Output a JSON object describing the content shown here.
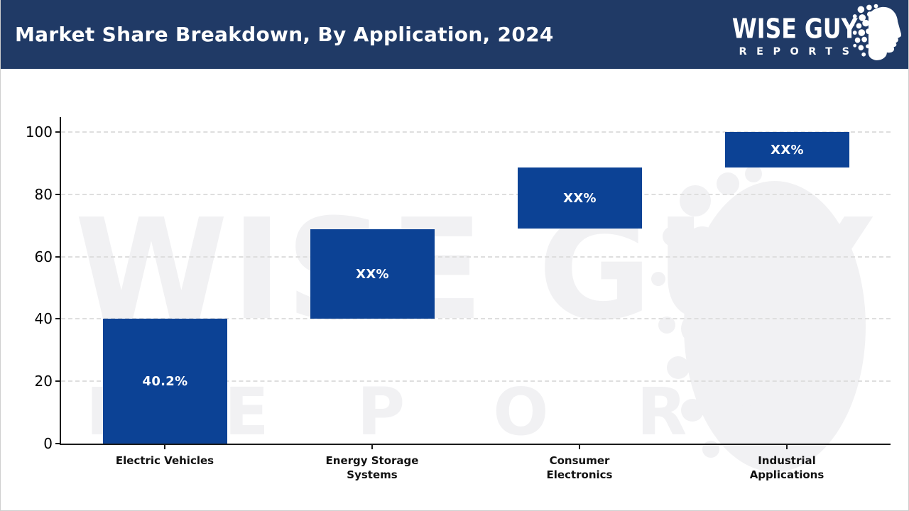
{
  "header": {
    "bg_color": "#203a66",
    "title": "Market Share Breakdown, By Application, 2024",
    "brand": {
      "line1": "WISE GUY",
      "line2": "REPORTS",
      "face_icon": "profile-head-dots"
    }
  },
  "watermark": {
    "line1": "WISE GUY",
    "line2": "R E P O R T S",
    "face_icon": "profile-head-dots"
  },
  "chart_data": {
    "type": "bar",
    "variant": "waterfall",
    "title": "Market Share Breakdown, By Application, 2024",
    "xlabel": "",
    "ylabel": "",
    "ylim": [
      0,
      100
    ],
    "yticks": [
      0,
      20,
      40,
      60,
      80,
      100
    ],
    "grid": "horizontal-dashed",
    "legend": "none",
    "bar_color": "#0c4295",
    "bar_label_color": "#ffffff",
    "axis_color": "#1a1a1a",
    "categories": [
      {
        "name": "Electric Vehicles",
        "lines": [
          "Electric Vehicles"
        ]
      },
      {
        "name": "Energy Storage Systems",
        "lines": [
          "Energy Storage",
          "Systems"
        ]
      },
      {
        "name": "Consumer Electronics",
        "lines": [
          "Consumer",
          "Electronics"
        ]
      },
      {
        "name": "Industrial Applications",
        "lines": [
          "Industrial",
          "Applications"
        ]
      }
    ],
    "segments": [
      {
        "category": "Electric Vehicles",
        "start": 0,
        "end": 40.2,
        "label": "40.2%"
      },
      {
        "category": "Energy Storage Systems",
        "start": 40.2,
        "end": 68.9,
        "label": "XX%"
      },
      {
        "category": "Consumer Electronics",
        "start": 68.9,
        "end": 88.5,
        "label": "XX%"
      },
      {
        "category": "Industrial Applications",
        "start": 88.5,
        "end": 100,
        "label": "XX%"
      }
    ]
  }
}
